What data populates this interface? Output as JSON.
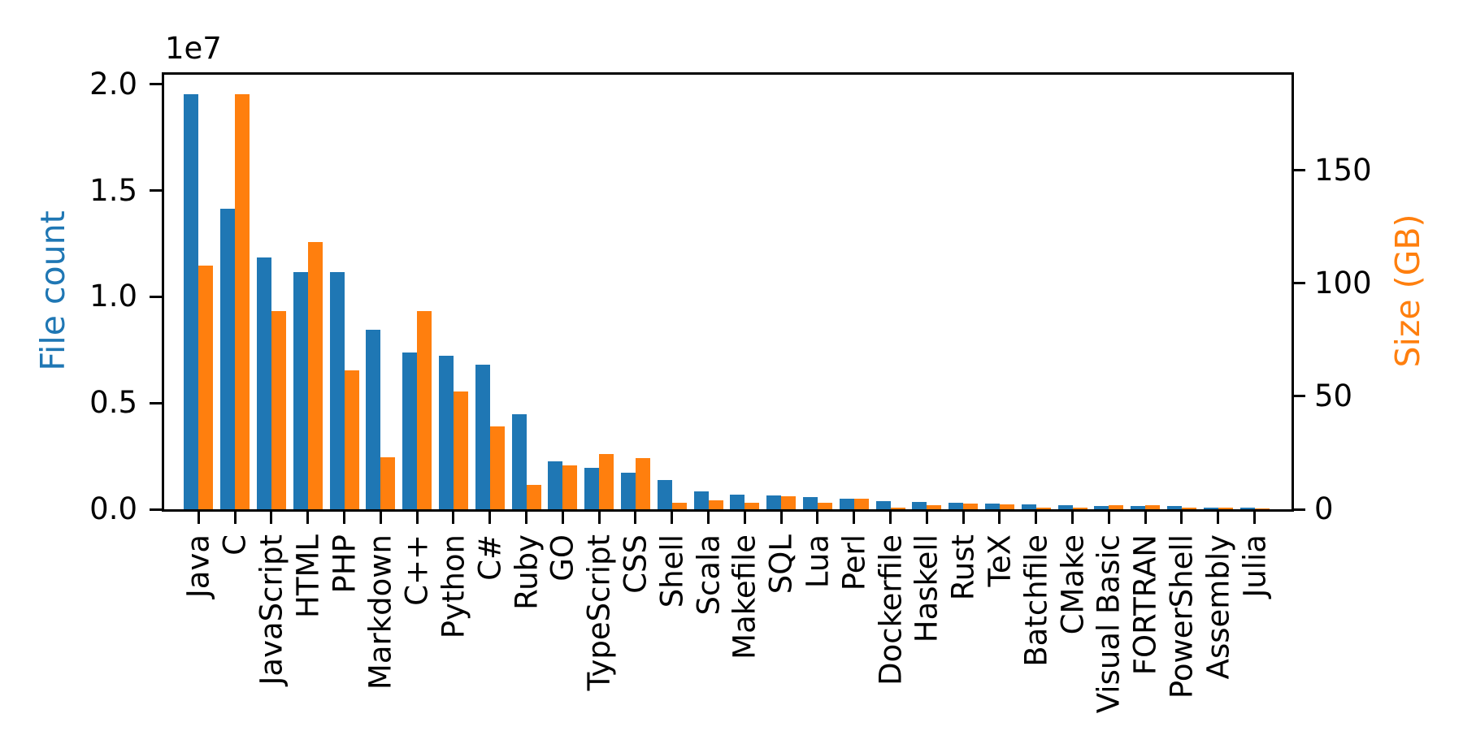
{
  "chart_data": {
    "type": "bar",
    "title": "",
    "grid": false,
    "legend": "none",
    "categories": [
      "Java",
      "C",
      "JavaScript",
      "HTML",
      "PHP",
      "Markdown",
      "C++",
      "Python",
      "C#",
      "Ruby",
      "GO",
      "TypeScript",
      "CSS",
      "Shell",
      "Scala",
      "Makefile",
      "SQL",
      "Lua",
      "Perl",
      "Dockerfile",
      "Haskell",
      "Rust",
      "TeX",
      "Batchfile",
      "CMake",
      "Visual Basic",
      "FORTRAN",
      "PowerShell",
      "Assembly",
      "Julia"
    ],
    "series": [
      {
        "name": "File count",
        "axis": "left",
        "color": "#1f77b4",
        "values": [
          19548190,
          14143113,
          11839883,
          11178557,
          11177610,
          8464626,
          7380520,
          7226626,
          6811652,
          4473331,
          2265436,
          1940406,
          1734406,
          1385648,
          835755,
          679430,
          656671,
          578554,
          497949,
          366505,
          340623,
          322431,
          251015,
          236945,
          175282,
          155652,
          142038,
          136846,
          82905,
          58317
        ]
      },
      {
        "name": "Size (GB)",
        "axis": "right",
        "color": "#ff7f0e",
        "values": [
          107.7,
          183.83,
          87.82,
          118.12,
          61.41,
          23.09,
          87.73,
          52.03,
          36.83,
          10.95,
          19.28,
          24.59,
          22.67,
          3.01,
          3.87,
          2.92,
          5.67,
          2.81,
          4.7,
          0.71,
          1.85,
          2.68,
          2.15,
          0.7,
          0.54,
          1.91,
          1.62,
          0.69,
          0.78,
          0.29
        ]
      }
    ],
    "left_axis": {
      "label": "File count",
      "color": "#1f77b4",
      "offset_text": "1e7",
      "ticks": [
        0,
        5000000,
        10000000,
        15000000,
        20000000
      ],
      "tick_labels": [
        "0.0",
        "0.5",
        "1.0",
        "1.5",
        "2.0"
      ],
      "min": 0,
      "max": 20525600
    },
    "right_axis": {
      "label": "Size (GB)",
      "color": "#ff7f0e",
      "ticks": [
        0,
        50,
        100,
        150
      ],
      "tick_labels": [
        "0",
        "50",
        "100",
        "150"
      ],
      "min": 0,
      "max": 193.02
    }
  }
}
